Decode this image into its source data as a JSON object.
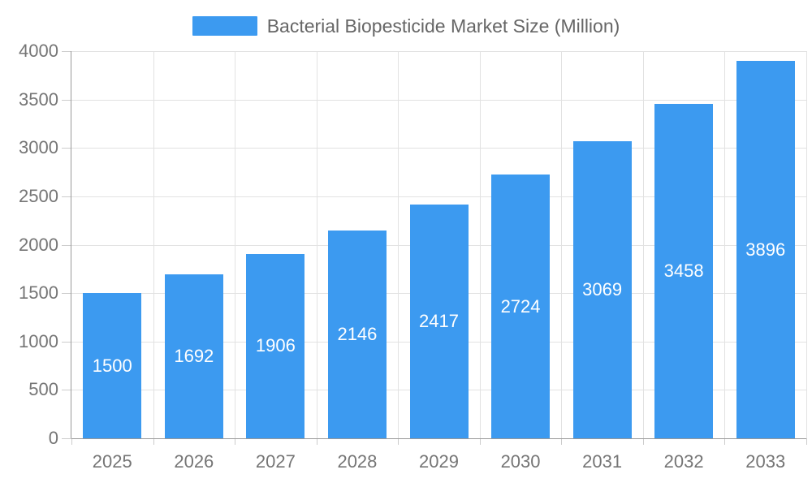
{
  "legend": {
    "items": [
      {
        "label": "Bacterial Biopesticide Market Size (Million)",
        "color": "#3C9AF0"
      }
    ]
  },
  "chart_data": {
    "type": "bar",
    "title": "Bacterial Biopesticide Market Size (Million)",
    "categories": [
      "2025",
      "2026",
      "2027",
      "2028",
      "2029",
      "2030",
      "2031",
      "2032",
      "2033"
    ],
    "values": [
      1500,
      1692,
      1906,
      2146,
      2417,
      2724,
      3069,
      3458,
      3896
    ],
    "xlabel": "",
    "ylabel": "",
    "ylim": [
      0,
      4000
    ],
    "yticks": [
      0,
      500,
      1000,
      1500,
      2000,
      2500,
      3000,
      3500,
      4000
    ],
    "grid": true,
    "legend_position": "top-center",
    "value_labels_position": "inside-center",
    "bar_color": "#3C9AF0",
    "value_label_color": "#FFFFFF"
  },
  "colors": {
    "bar": "#3C9AF0",
    "axis_line": "#999999",
    "tick_mark": "#CCCCCC",
    "gridline": "#E2E2E2",
    "axis_label_text": "#757575",
    "legend_text": "#666666",
    "background": "#FFFFFF"
  }
}
